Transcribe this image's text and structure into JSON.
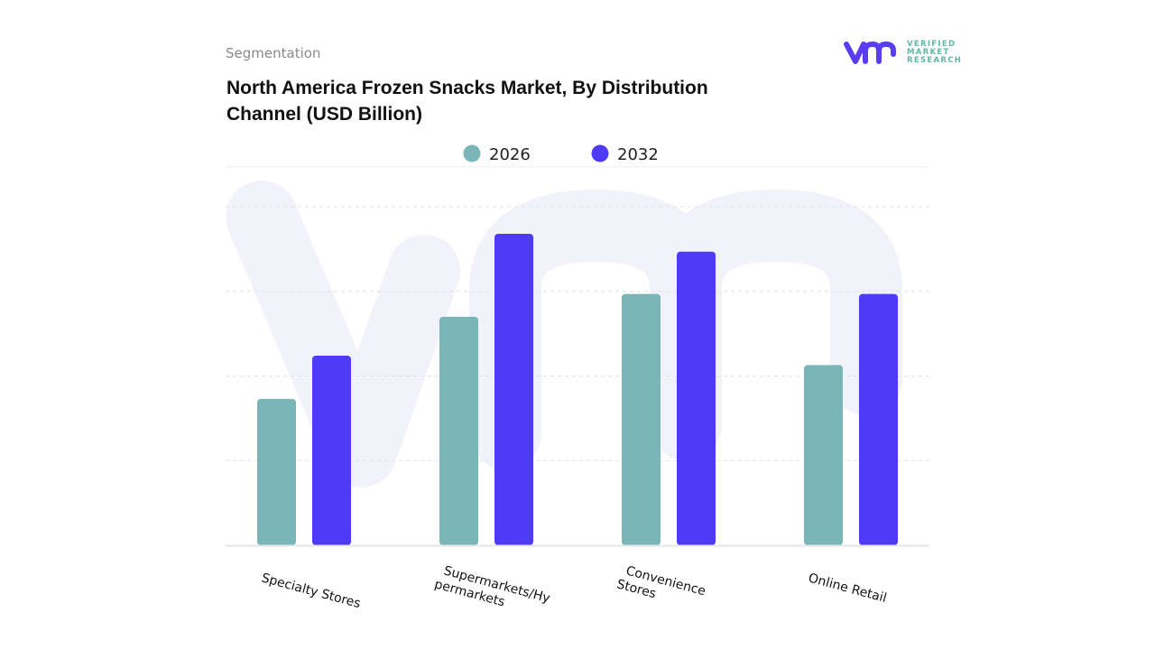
{
  "header": {
    "segment_label": "Segmentation",
    "logo_text": [
      "VERIFIED",
      "MARKET",
      "RESEARCH"
    ]
  },
  "chart_data": {
    "type": "bar",
    "title": "North America Frozen Snacks Market, By Distribution Channel (USD Billion)",
    "xlabel": "",
    "ylabel": "",
    "categories": [
      "Specialty Stores",
      "Supermarkets/Hypermarkets",
      "Convenience Stores",
      "Online Retail"
    ],
    "series": [
      {
        "name": "2026",
        "color": "#7ab5b8",
        "values": [
          1.73,
          2.7,
          2.97,
          2.13
        ]
      },
      {
        "name": "2032",
        "color": "#4f3bf5",
        "values": [
          2.24,
          3.68,
          3.47,
          2.97
        ]
      }
    ],
    "ylim": [
      0,
      4
    ],
    "y_axis_labels_shown": false,
    "grid": true,
    "legend_position": "top-center",
    "values_note_unit": "relative (no axis printed)"
  }
}
